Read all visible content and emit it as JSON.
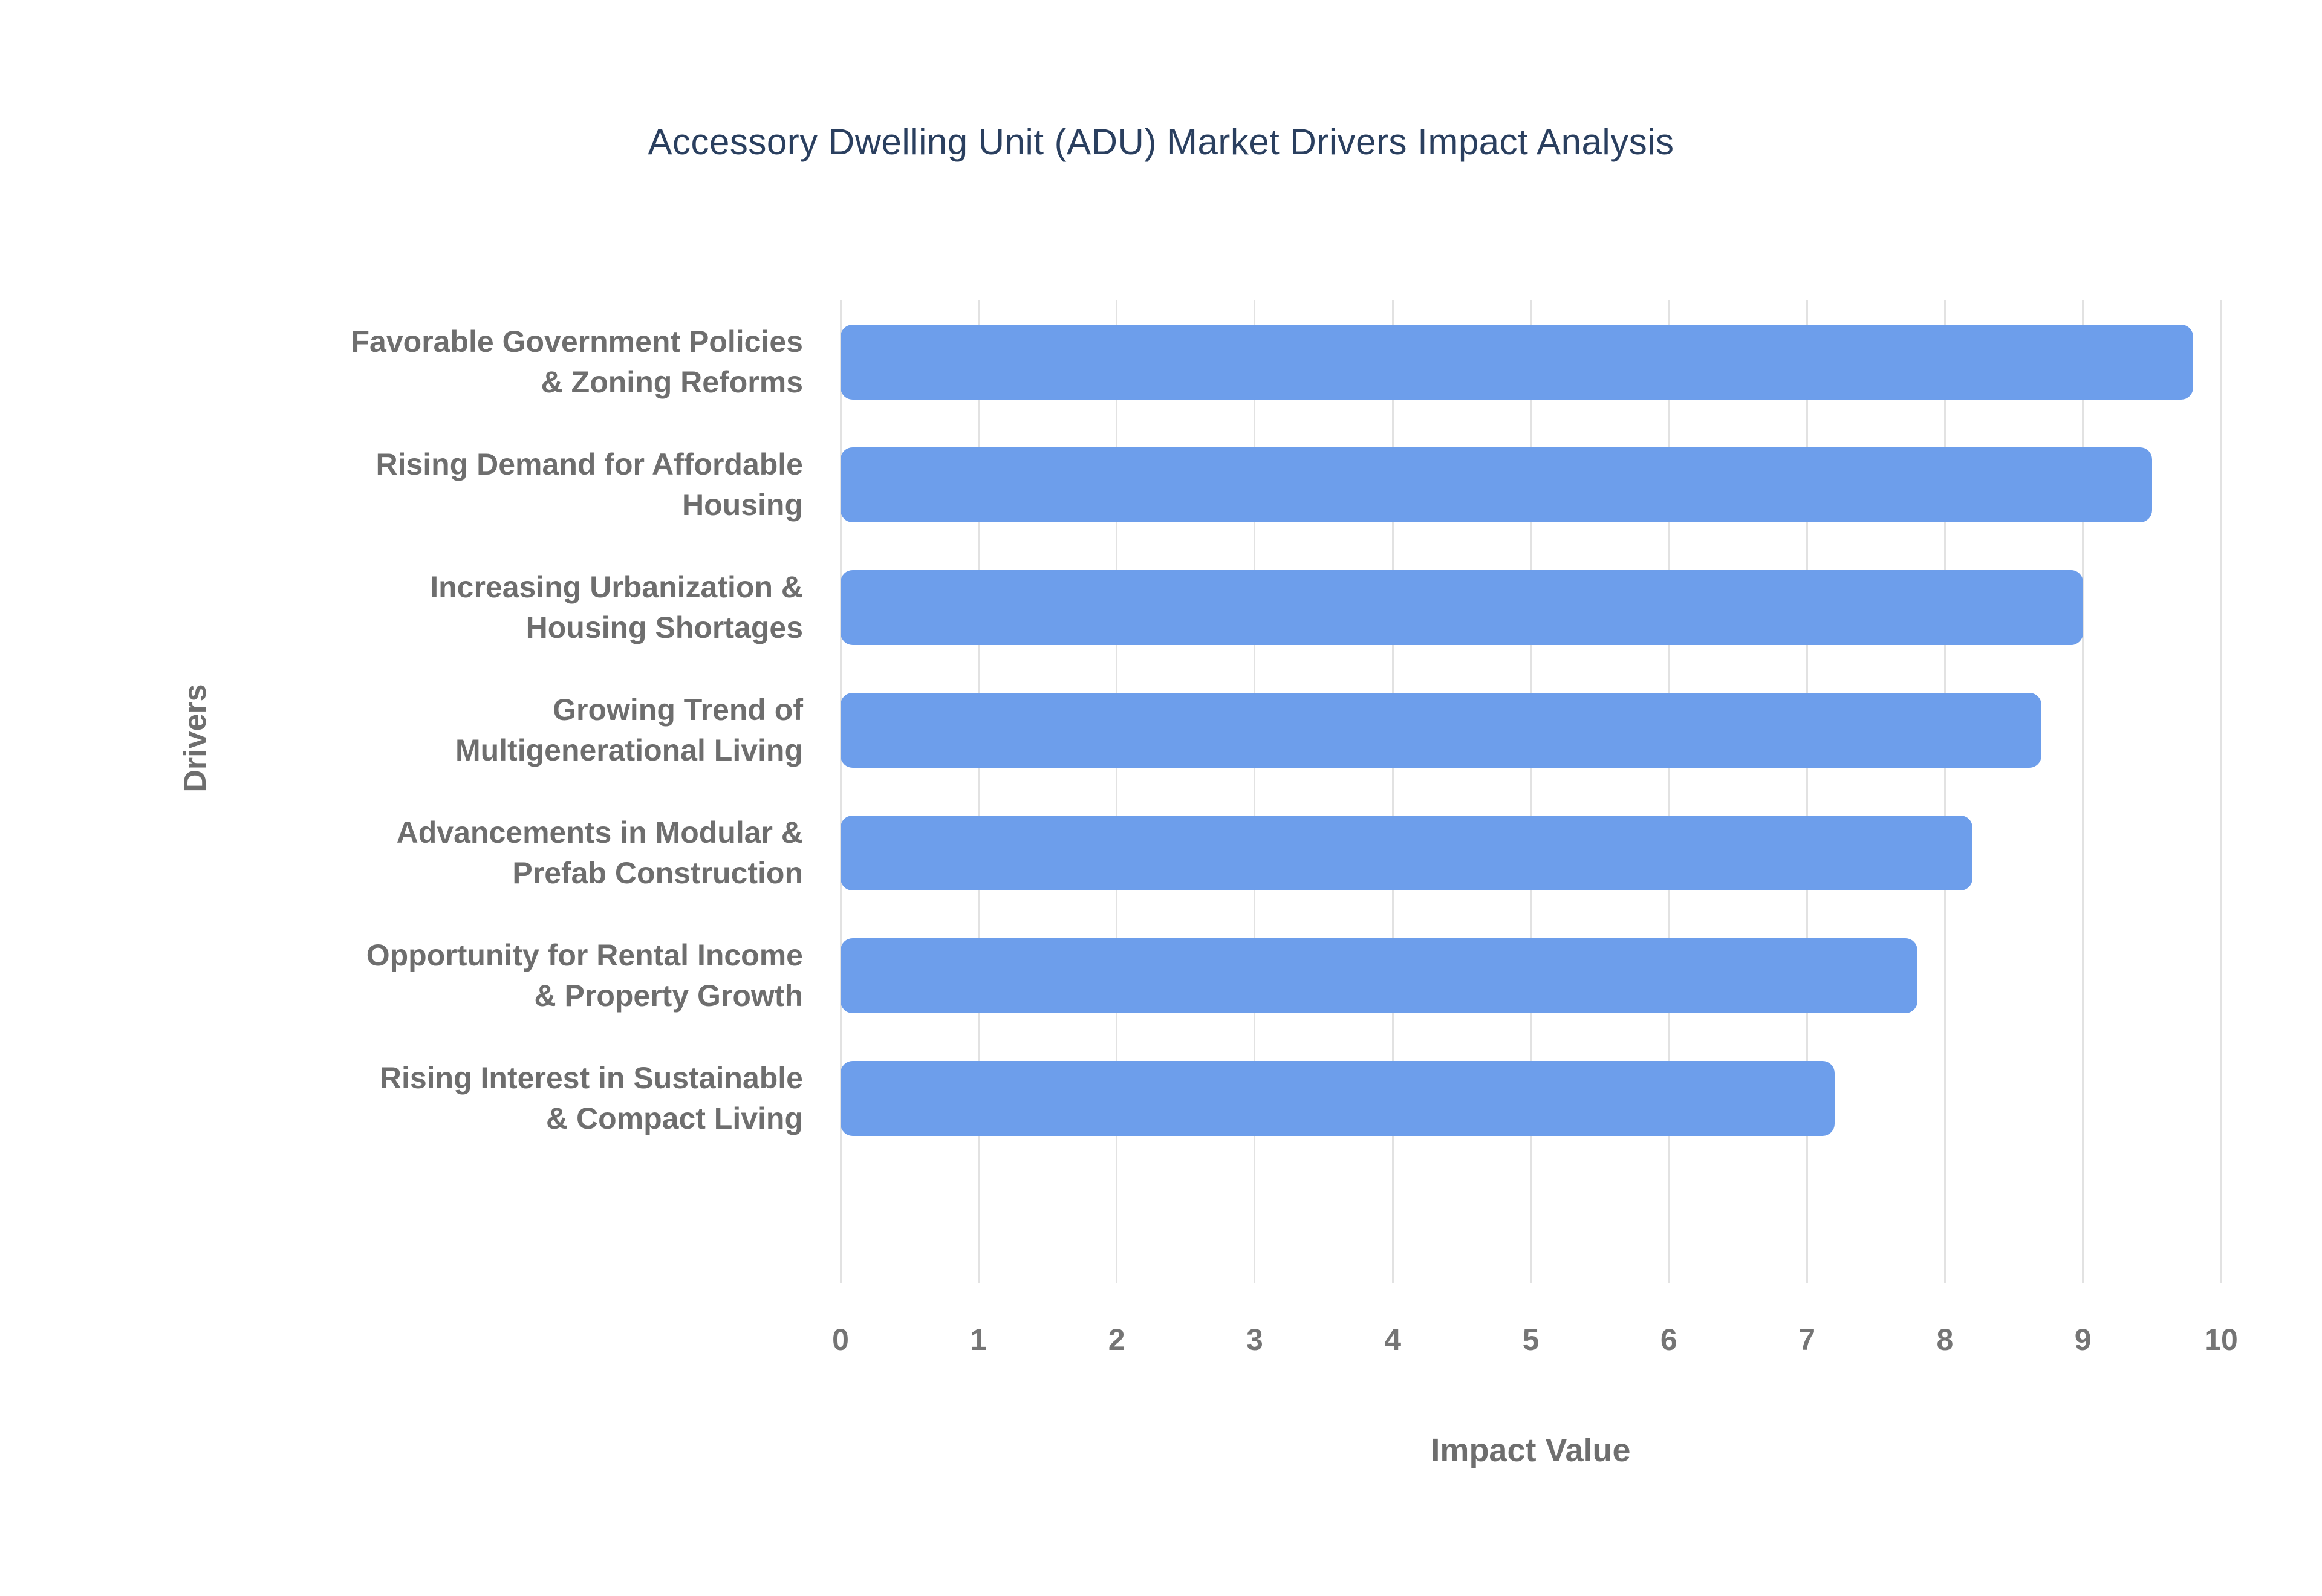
{
  "colors": {
    "bar": "#6d9eeb",
    "title": "#2a3f5f",
    "category_label": "#6e6e6e",
    "tick_label": "#757575",
    "grid": "#e2e2e2",
    "background": "#ffffff"
  },
  "chart_data": {
    "type": "bar",
    "orientation": "horizontal",
    "title": "Accessory Dwelling Unit (ADU) Market Drivers Impact Analysis",
    "xlabel": "Impact Value",
    "ylabel": "Drivers",
    "categories": [
      "Favorable Government Policies\n& Zoning Reforms",
      "Rising Demand for Affordable\nHousing",
      "Increasing Urbanization &\nHousing Shortages",
      "Growing Trend of\nMultigenerational Living",
      "Advancements in Modular &\nPrefab Construction",
      "Opportunity for Rental Income\n& Property Growth",
      "Rising Interest in Sustainable\n& Compact Living"
    ],
    "values": [
      9.8,
      9.5,
      9.0,
      8.7,
      8.2,
      7.8,
      7.2
    ],
    "xlim": [
      0,
      10
    ],
    "xticks": [
      0,
      1,
      2,
      3,
      4,
      5,
      6,
      7,
      8,
      9,
      10
    ],
    "grid": true,
    "legend": false
  }
}
